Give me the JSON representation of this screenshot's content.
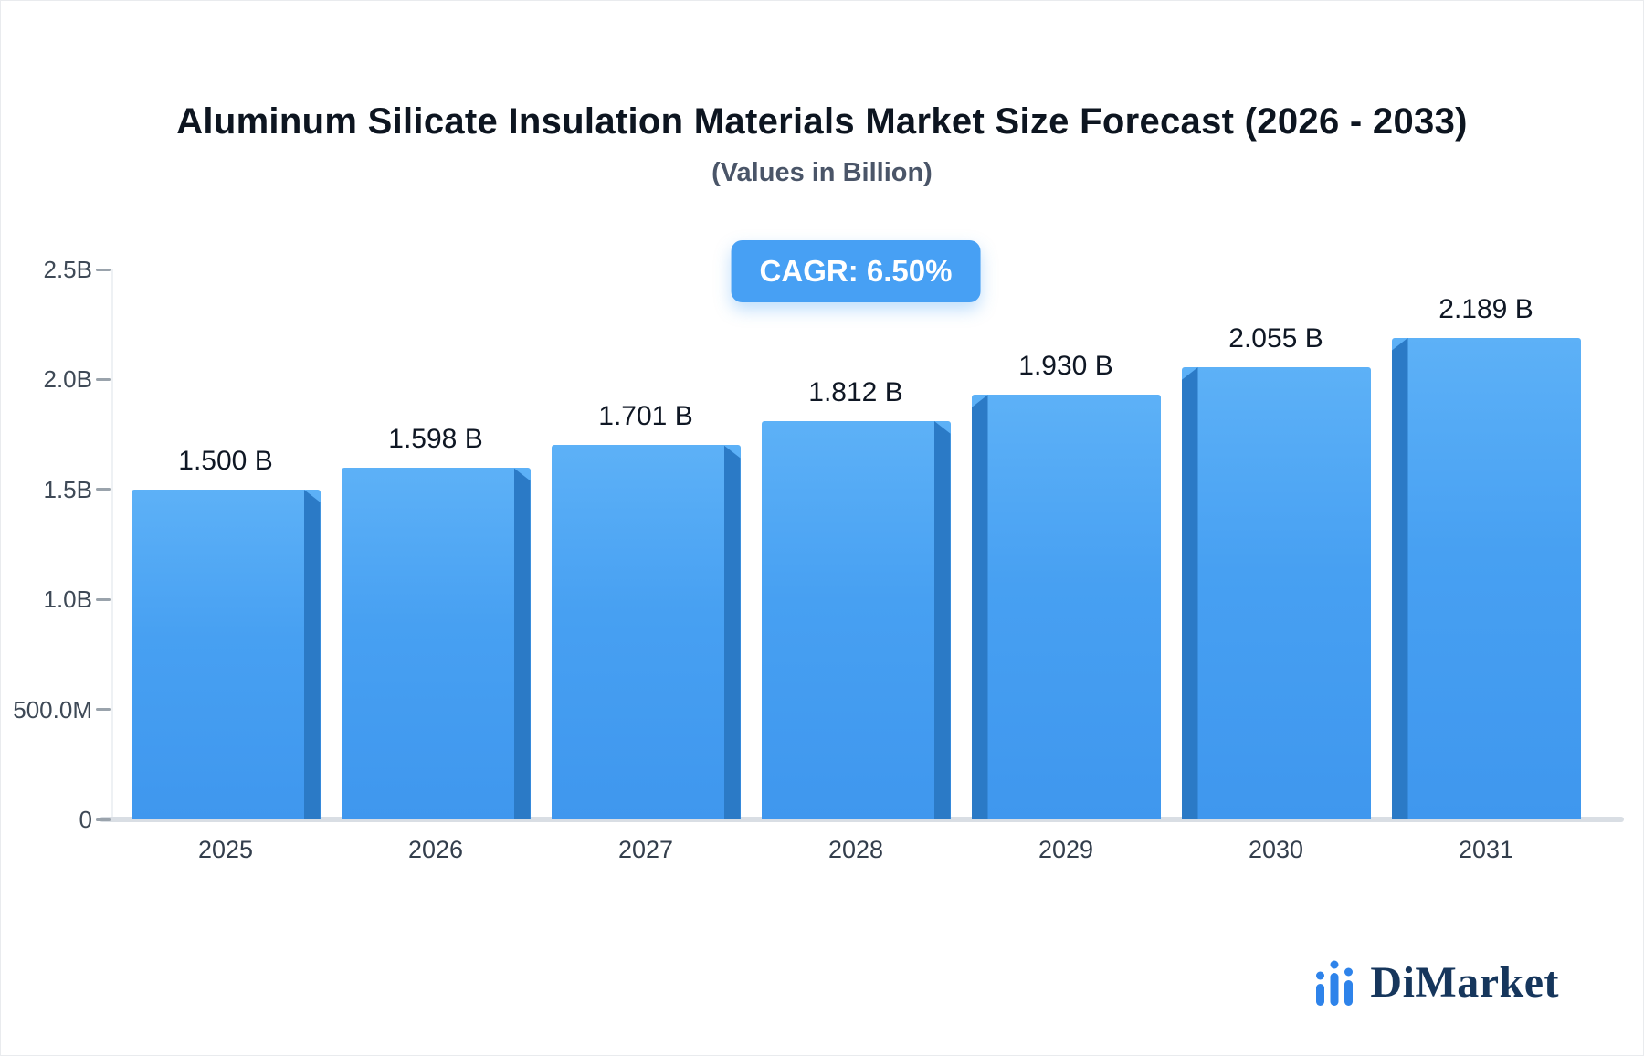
{
  "chart": {
    "title": "Aluminum Silicate Insulation Materials Market Size Forecast (2026 - 2033)",
    "subtitle": "(Values in Billion)",
    "cagr_label": "CAGR: 6.50%"
  },
  "chart_data": {
    "type": "bar",
    "title": "Aluminum Silicate Insulation Materials Market Size Forecast (2026 - 2033)",
    "subtitle": "(Values in Billion)",
    "annotation": "CAGR: 6.50%",
    "categories": [
      "2025",
      "2026",
      "2027",
      "2028",
      "2029",
      "2030",
      "2031"
    ],
    "values": [
      1.5,
      1.598,
      1.701,
      1.812,
      1.93,
      2.055,
      2.189
    ],
    "value_labels": [
      "1.500 B",
      "1.598 B",
      "1.701 B",
      "1.812 B",
      "1.930 B",
      "2.055 B",
      "2.189 B"
    ],
    "xlabel": "",
    "ylabel": "",
    "ylim": [
      0,
      2.5
    ],
    "y_ticks": [
      {
        "label": "2.5B",
        "value": 2.5
      },
      {
        "label": "2.0B",
        "value": 2.0
      },
      {
        "label": "1.5B",
        "value": 1.5
      },
      {
        "label": "1.0B",
        "value": 1.0
      },
      {
        "label": "500.0M",
        "value": 0.5
      },
      {
        "label": "0",
        "value": 0
      }
    ],
    "grid": false,
    "legend": false,
    "colors": {
      "bar_top": "#5db1f7",
      "bar_mid": "#47a0f2",
      "bar_bottom": "#3f97ee",
      "bar_side": "#2b7ac6",
      "badge_bg": "#47a0f4",
      "axis_text": "#3e4956",
      "baseline": "#d9dee4",
      "logo_text": "#16365c",
      "logo_icon": "#2e83ea"
    }
  },
  "logo": {
    "text": "DiMarket"
  }
}
